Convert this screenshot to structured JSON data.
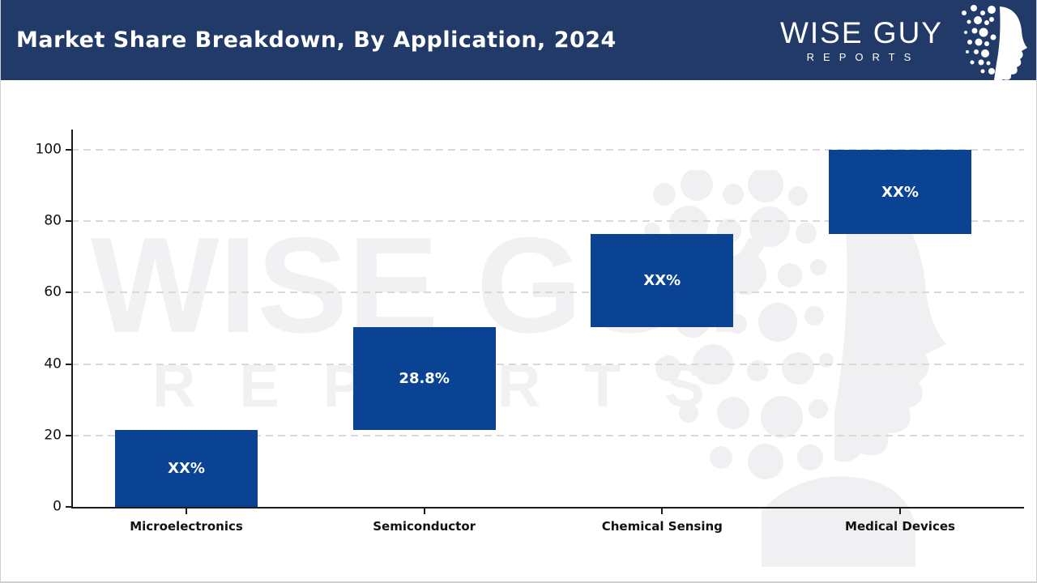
{
  "header": {
    "title": "Market Share Breakdown, By Application, 2024",
    "logo": {
      "line1": "WISE GUY",
      "line2": "REPORTS"
    }
  },
  "watermark": {
    "line1": "WISE GUY",
    "line2": "REPORTS"
  },
  "colors": {
    "header_bg": "#213a68",
    "bar_color": "#0a4394",
    "bar_label_color": "#ffffff",
    "grid_color": "#d9d9d9",
    "axis_color": "#1c1c1c",
    "watermark_color": "#f1f1f3"
  },
  "chart_data": {
    "type": "bar",
    "subtype": "waterfall",
    "title": "Market Share Breakdown, By Application, 2024",
    "xlabel": "",
    "ylabel": "",
    "categories": [
      "Microelectronics",
      "Semiconductor",
      "Chemical Sensing",
      "Medical Devices"
    ],
    "segments": [
      {
        "category": "Microelectronics",
        "start": 0,
        "end": 21.5,
        "value": 21.5,
        "label": "XX%"
      },
      {
        "category": "Semiconductor",
        "start": 21.5,
        "end": 50.3,
        "value": 28.8,
        "label": "28.8%"
      },
      {
        "category": "Chemical Sensing",
        "start": 50.3,
        "end": 76.4,
        "value": 26.1,
        "label": "XX%"
      },
      {
        "category": "Medical Devices",
        "start": 76.4,
        "end": 100,
        "value": 23.6,
        "label": "XX%"
      }
    ],
    "yticks": [
      0,
      20,
      40,
      60,
      80,
      100
    ],
    "ytick_labels": [
      "0",
      "20",
      "40",
      "60",
      "80",
      "100"
    ],
    "ylim": [
      0,
      105.7
    ],
    "grid": "horizontal dashed",
    "legend": "none"
  }
}
